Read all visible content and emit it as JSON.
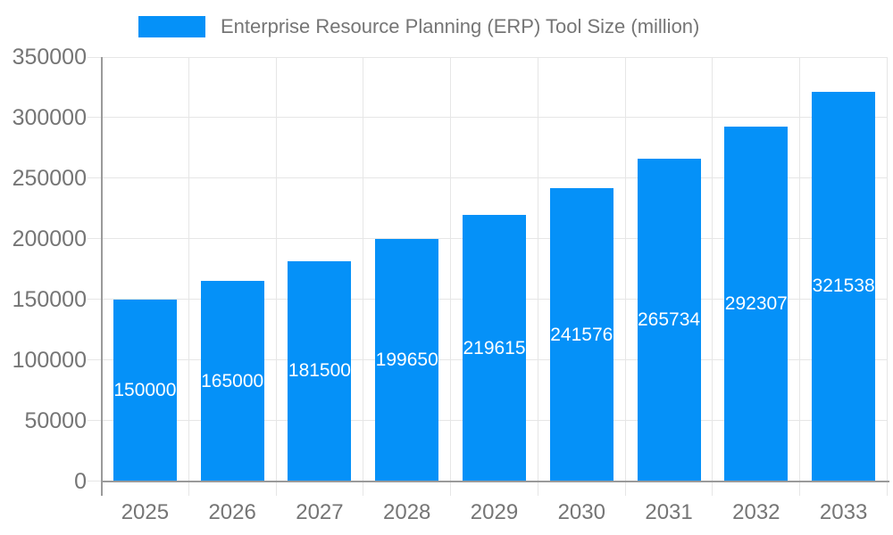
{
  "title": "Enterprise Resource Planning (ERP) Tool Size (million)",
  "chart_data": {
    "type": "bar",
    "title": "Enterprise Resource Planning (ERP) Tool Size (million)",
    "categories": [
      "2025",
      "2026",
      "2027",
      "2028",
      "2029",
      "2030",
      "2031",
      "2032",
      "2033"
    ],
    "series": [
      {
        "name": "Enterprise Resource Planning (ERP) Tool Size (million)",
        "values": [
          150000,
          165000,
          181500,
          199650,
          219615,
          241576,
          265734,
          292307,
          321538
        ]
      }
    ],
    "bar_labels": [
      "150000",
      "165000",
      "181500",
      "199650",
      "219615",
      "241576",
      "265734",
      "292307",
      "321538"
    ],
    "xlabel": "",
    "ylabel": "",
    "ylim": [
      0,
      350000
    ],
    "yticks": [
      0,
      50000,
      100000,
      150000,
      200000,
      250000,
      300000,
      350000
    ],
    "ytick_labels": [
      "0",
      "50000",
      "100000",
      "150000",
      "200000",
      "250000",
      "300000",
      "350000"
    ],
    "legend_position": "top",
    "grid": true
  },
  "colors": {
    "bar": "#0591f8",
    "bar_label_text": "#ffffff",
    "axis_text": "#757575",
    "title_text": "#757575",
    "gridline": "#e6e6e6",
    "axis_line": "#9a9a9a",
    "background": "#ffffff"
  }
}
